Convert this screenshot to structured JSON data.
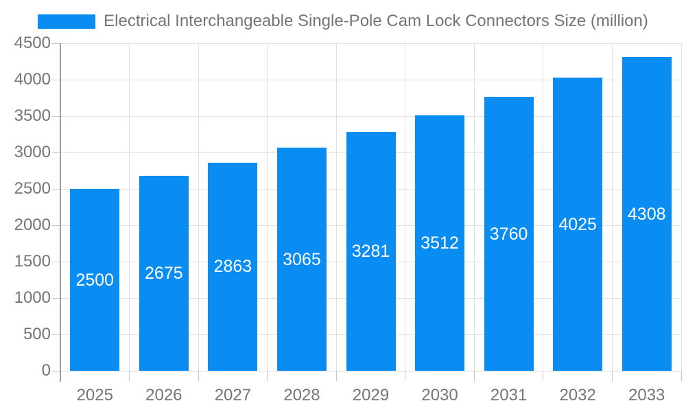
{
  "chart_data": {
    "type": "bar",
    "title": "Electrical Interchangeable Single-Pole Cam Lock Connectors Size (million)",
    "series_name": "Electrical Interchangeable Single-Pole Cam Lock Connectors Size (million)",
    "categories": [
      "2025",
      "2026",
      "2027",
      "2028",
      "2029",
      "2030",
      "2031",
      "2032",
      "2033"
    ],
    "values": [
      2500,
      2675,
      2863,
      3065,
      3281,
      3512,
      3760,
      4025,
      4308
    ],
    "xlabel": "",
    "ylabel": "",
    "ylim": [
      0,
      4500
    ],
    "ytick_step": 500,
    "ytick_labels": [
      "0",
      "500",
      "1000",
      "1500",
      "2000",
      "2500",
      "3000",
      "3500",
      "4000",
      "4500"
    ],
    "grid": true,
    "legend_position": "top-center",
    "bar_labels_inside": true,
    "colors": {
      "bar": "#0a8df2",
      "bar_label_text": "#ffffff",
      "axis_text": "#757575",
      "gridline": "#e0e0e0",
      "axis_line": "#9e9e9e",
      "tick": "#c6c6c6",
      "background": "#ffffff"
    }
  }
}
